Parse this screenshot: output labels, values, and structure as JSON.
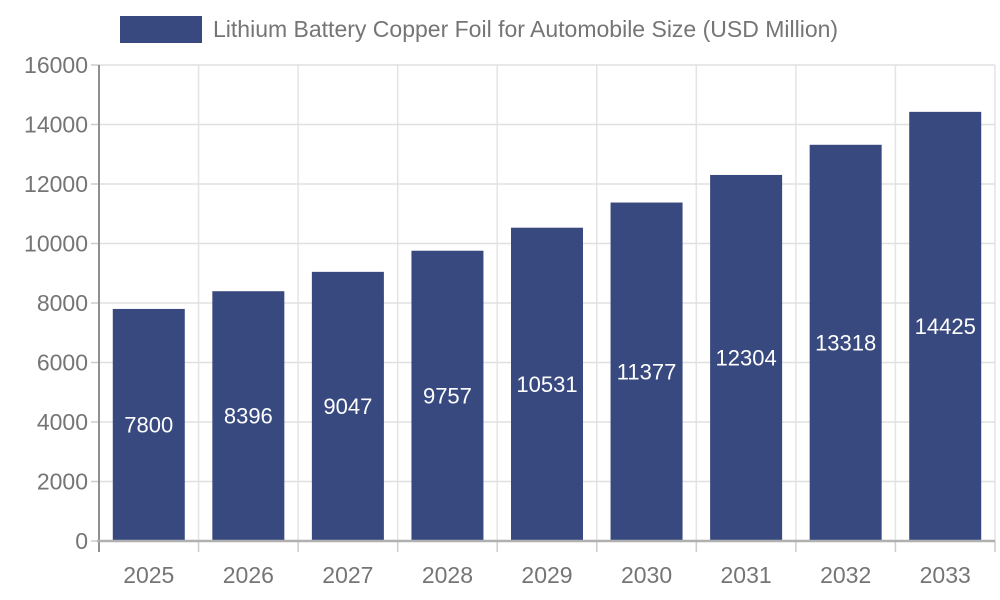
{
  "legend": {
    "label": "Lithium Battery Copper Foil for Automobile Size (USD Million)"
  },
  "colors": {
    "bar": "#38497f",
    "value_label": "#ffffff",
    "axis_text": "#757575",
    "legend_text": "#757575",
    "grid_horizontal": "#e0e0e0",
    "grid_vertical": "#e3e3ea",
    "y_axis_line": "#8f8f8f",
    "x_axis_line": "#b0b0b0",
    "tick": "#cccccc",
    "background": "#ffffff"
  },
  "chart_data": {
    "type": "bar",
    "title": "Lithium Battery Copper Foil for Automobile Size (USD Million)",
    "categories": [
      "2025",
      "2026",
      "2027",
      "2028",
      "2029",
      "2030",
      "2031",
      "2032",
      "2033"
    ],
    "values": [
      7800,
      8396,
      9047,
      9757,
      10531,
      11377,
      12304,
      13318,
      14425
    ],
    "xlabel": "",
    "ylabel": "",
    "ylim": [
      0,
      16000
    ],
    "ytick_step": 2000,
    "ytick_labels": [
      "0",
      "2000",
      "4000",
      "6000",
      "8000",
      "10000",
      "12000",
      "14000",
      "16000"
    ],
    "grid": true,
    "legend_position": "top-left",
    "value_label_position": "inside-center"
  }
}
